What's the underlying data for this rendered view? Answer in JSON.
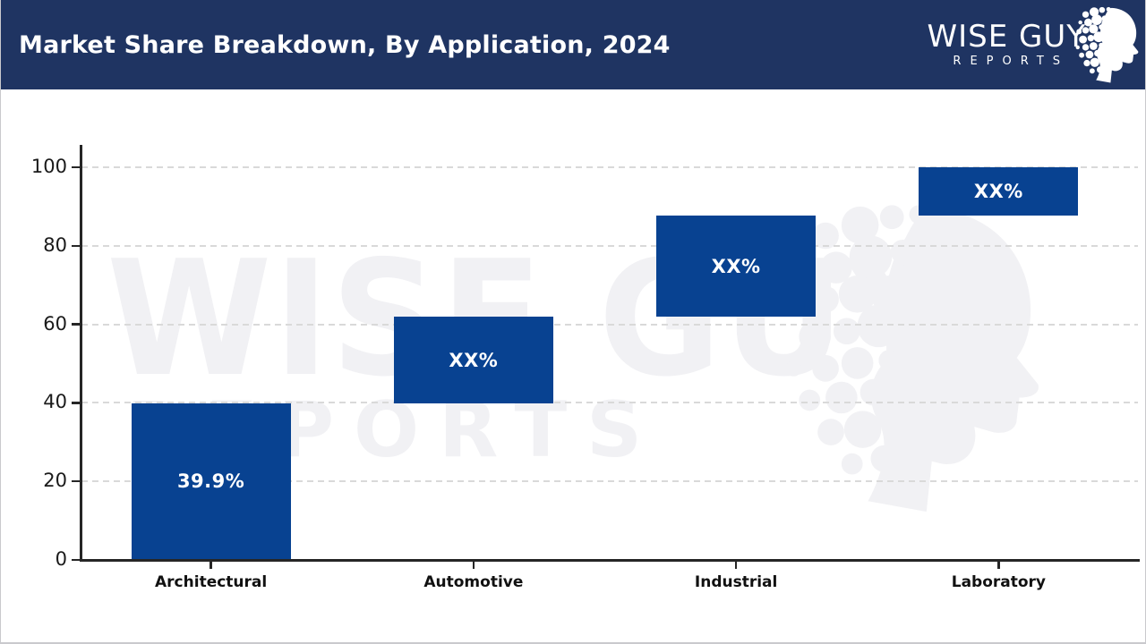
{
  "header": {
    "title": "Market Share Breakdown, By Application, 2024",
    "brand_line1": "WISE GUY",
    "brand_line2": "REPORTS"
  },
  "watermark": {
    "line1": "WISE GUY",
    "line2": "REPORTS"
  },
  "colors": {
    "header_bg": "#1f3462",
    "bar": "#084291",
    "grid": "#d9d9d9",
    "axis": "#262626",
    "watermark": "#f1f1f4"
  },
  "chart_data": {
    "type": "bar",
    "subtype": "waterfall",
    "title": "Market Share Breakdown, By Application, 2024",
    "categories": [
      "Architectural",
      "Automotive",
      "Industrial",
      "Laboratory"
    ],
    "series": [
      {
        "name": "Market Share",
        "starts": [
          0,
          39.9,
          61.9,
          87.6
        ],
        "ends": [
          39.9,
          61.9,
          87.6,
          100
        ]
      }
    ],
    "bar_labels": [
      "39.9%",
      "XX%",
      "XX%",
      "XX%"
    ],
    "xlabel": "",
    "ylabel": "",
    "ylim": [
      0,
      100
    ],
    "yticks": [
      0,
      20,
      40,
      60,
      80,
      100
    ],
    "grid": "horizontal-dashed",
    "legend": "none",
    "bar_color": "#084291"
  }
}
